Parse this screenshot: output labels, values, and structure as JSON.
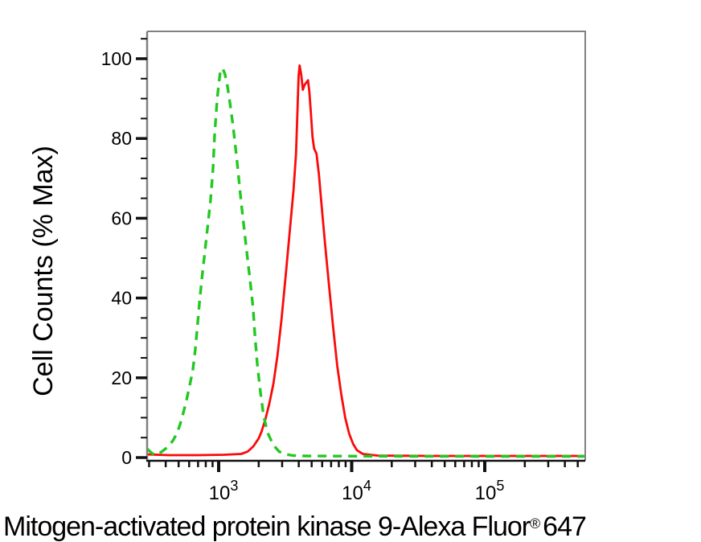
{
  "chart_data": {
    "type": "line",
    "subtype": "flow-cytometry-overlay-histogram",
    "title": "",
    "xlabel": "Mitogen-activated protein kinase 9-Alexa Fluor® 647",
    "xlabel_parts": {
      "main": "Mitogen-activated protein kinase 9-Alexa Fluor",
      "reg": "®",
      "suffix": "647"
    },
    "ylabel": "Cell Counts (% Max)",
    "x_scale": "log10",
    "xlim": [
      290,
      569000
    ],
    "ylim": [
      0,
      100
    ],
    "grid": false,
    "legend": null,
    "x_axis": {
      "major_ticks": [
        {
          "base": "10",
          "exponent": "3",
          "value": 1000
        },
        {
          "base": "10",
          "exponent": "4",
          "value": 10000
        },
        {
          "base": "10",
          "exponent": "5",
          "value": 100000
        }
      ],
      "minor_tick_values": [
        300,
        400,
        500,
        600,
        700,
        800,
        900,
        2000,
        3000,
        4000,
        5000,
        6000,
        7000,
        8000,
        9000,
        20000,
        30000,
        40000,
        50000,
        60000,
        70000,
        80000,
        90000,
        200000,
        300000,
        400000,
        500000
      ]
    },
    "y_axis": {
      "major_ticks": [
        {
          "label": "0",
          "value": 0
        },
        {
          "label": "20",
          "value": 20
        },
        {
          "label": "40",
          "value": 40
        },
        {
          "label": "60",
          "value": 60
        },
        {
          "label": "80",
          "value": 80
        },
        {
          "label": "100",
          "value": 100
        }
      ],
      "minor_tick_values": [
        5,
        10,
        15,
        25,
        30,
        35,
        45,
        50,
        55,
        65,
        70,
        75,
        85,
        90,
        95,
        105
      ]
    },
    "colors": {
      "frame": "#808080",
      "axis": "#111111",
      "text": "#000000",
      "sample": "#fa0a0a",
      "control": "#22c822"
    },
    "series": [
      {
        "name": "sample (solid red)",
        "color": "#fa0a0a",
        "line_style": "solid",
        "line_width": 2.8,
        "points": [
          [
            290,
            0.8
          ],
          [
            420,
            0.6
          ],
          [
            700,
            0.6
          ],
          [
            1100,
            0.7
          ],
          [
            1476,
            0.9
          ],
          [
            1650,
            1.5
          ],
          [
            1822,
            2.8
          ],
          [
            2000,
            4.8
          ],
          [
            2100,
            6.5
          ],
          [
            2242,
            9.5
          ],
          [
            2404,
            13.5
          ],
          [
            2578,
            18.5
          ],
          [
            2764,
            25.5
          ],
          [
            2964,
            34.5
          ],
          [
            3178,
            45
          ],
          [
            3408,
            56
          ],
          [
            3654,
            67
          ],
          [
            3811,
            76
          ],
          [
            3918,
            88
          ],
          [
            3988,
            95.5
          ],
          [
            4060,
            98.3
          ],
          [
            4175,
            96
          ],
          [
            4293,
            92.2
          ],
          [
            4420,
            93.4
          ],
          [
            4690,
            94.6
          ],
          [
            4800,
            92
          ],
          [
            4930,
            86.5
          ],
          [
            5070,
            80.5
          ],
          [
            5215,
            77.5
          ],
          [
            5437,
            76.2
          ],
          [
            5670,
            71
          ],
          [
            5910,
            64
          ],
          [
            6330,
            53
          ],
          [
            6780,
            42.5
          ],
          [
            7264,
            32.5
          ],
          [
            7780,
            23
          ],
          [
            8336,
            16
          ],
          [
            8930,
            10
          ],
          [
            9566,
            6
          ],
          [
            10250,
            3.4
          ],
          [
            10980,
            1.8
          ],
          [
            12130,
            0.9
          ],
          [
            15580,
            0.5
          ],
          [
            40000,
            0.4
          ],
          [
            200000,
            0.4
          ],
          [
            560000,
            0.4
          ]
        ]
      },
      {
        "name": "control (dashed green)",
        "color": "#22c822",
        "line_style": "dashed",
        "line_width": 3.4,
        "dash_pattern": "11 8",
        "points": [
          [
            290,
            2.2
          ],
          [
            315,
            1.1
          ],
          [
            332,
            0.6
          ],
          [
            355,
            1.0
          ],
          [
            378,
            1.6
          ],
          [
            420,
            2.8
          ],
          [
            452,
            4.2
          ],
          [
            485,
            6
          ],
          [
            515,
            8.5
          ],
          [
            545,
            11.5
          ],
          [
            574,
            14.5
          ],
          [
            605,
            18
          ],
          [
            640,
            22
          ],
          [
            664,
            26.5
          ],
          [
            691,
            32.5
          ],
          [
            720,
            39.5
          ],
          [
            757,
            46.5
          ],
          [
            799,
            53.5
          ],
          [
            833,
            59
          ],
          [
            869,
            64.5
          ],
          [
            907,
            72.5
          ],
          [
            933,
            81
          ],
          [
            973,
            89.5
          ],
          [
            1000,
            93.5
          ],
          [
            1030,
            96.8
          ],
          [
            1072,
            97.6
          ],
          [
            1118,
            96
          ],
          [
            1166,
            93
          ],
          [
            1215,
            89
          ],
          [
            1285,
            83
          ],
          [
            1377,
            74
          ],
          [
            1476,
            64
          ],
          [
            1583,
            55
          ],
          [
            1674,
            48
          ],
          [
            1770,
            41
          ],
          [
            1820,
            37
          ],
          [
            1871,
            31
          ],
          [
            1950,
            23.5
          ],
          [
            2060,
            16.5
          ],
          [
            2177,
            10.5
          ],
          [
            2333,
            6.2
          ],
          [
            2578,
            3.1
          ],
          [
            2850,
            1.5
          ],
          [
            3180,
            0.8
          ],
          [
            3650,
            0.5
          ],
          [
            4480,
            0.4
          ],
          [
            12000,
            0.35
          ],
          [
            100000,
            0.3
          ],
          [
            560000,
            0.3
          ]
        ]
      }
    ]
  }
}
